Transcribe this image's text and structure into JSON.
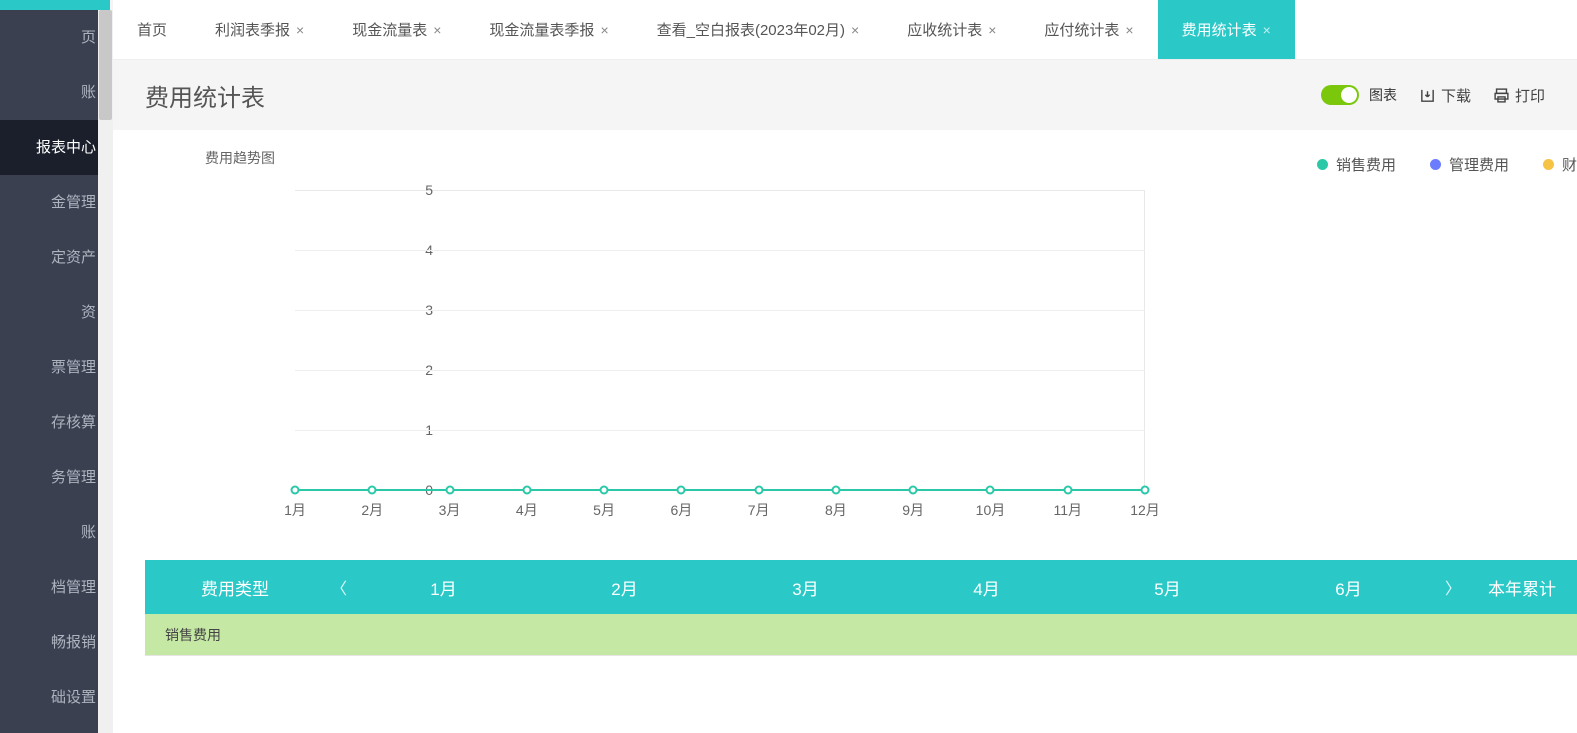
{
  "sidebar": {
    "items": [
      {
        "label": "页"
      },
      {
        "label": "账"
      },
      {
        "label": "报表中心",
        "active": true
      },
      {
        "label": "金管理"
      },
      {
        "label": "定资产"
      },
      {
        "label": "资"
      },
      {
        "label": "票管理"
      },
      {
        "label": "存核算"
      },
      {
        "label": "务管理"
      },
      {
        "label": "账"
      },
      {
        "label": "档管理"
      },
      {
        "label": "畅报销"
      },
      {
        "label": "础设置"
      }
    ],
    "bg_color": "#3a4050",
    "active_bg": "#1a1f2b",
    "text_color": "#adb3bf"
  },
  "tabs": [
    {
      "label": "首页",
      "closable": false
    },
    {
      "label": "利润表季报",
      "closable": true
    },
    {
      "label": "现金流量表",
      "closable": true
    },
    {
      "label": "现金流量表季报",
      "closable": true
    },
    {
      "label": "查看_空白报表(2023年02月)",
      "closable": true
    },
    {
      "label": "应收统计表",
      "closable": true
    },
    {
      "label": "应付统计表",
      "closable": true
    },
    {
      "label": "费用统计表",
      "closable": true,
      "active": true
    }
  ],
  "page": {
    "title": "费用统计表",
    "toggle_label": "图表",
    "toggle_on": true,
    "download_label": "下载",
    "print_label": "打印"
  },
  "chart": {
    "title": "费用趋势图",
    "type": "line",
    "legend": [
      {
        "label": "销售费用",
        "color": "#2bc8a8"
      },
      {
        "label": "管理费用",
        "color": "#6b7cff"
      },
      {
        "label": "财",
        "color": "#f6c344"
      }
    ],
    "x_labels": [
      "1月",
      "2月",
      "3月",
      "4月",
      "5月",
      "6月",
      "7月",
      "8月",
      "9月",
      "10月",
      "11月",
      "12月"
    ],
    "y_ticks": [
      0,
      1,
      2,
      3,
      4,
      5
    ],
    "ylim": [
      0,
      5
    ],
    "series": [
      {
        "name": "销售费用",
        "color": "#2bc8a8",
        "values": [
          0,
          0,
          0,
          0,
          0,
          0,
          0,
          0,
          0,
          0,
          0,
          0
        ]
      }
    ],
    "grid_color": "#eeeeee",
    "axis_color": "#e8e8e8",
    "background_color": "#ffffff",
    "label_fontsize": 14,
    "line_width": 2,
    "marker_size": 9
  },
  "table": {
    "header_bg": "#2bc8c8",
    "header_color": "#ffffff",
    "row_bg": "#c6e8a5",
    "type_header": "费用类型",
    "month_headers": [
      "1月",
      "2月",
      "3月",
      "4月",
      "5月",
      "6月"
    ],
    "total_header": "本年累计",
    "nav_prev": "〈",
    "nav_next": "〉",
    "rows": [
      {
        "type": "销售费用",
        "cells": [
          "",
          "",
          "",
          "",
          "",
          ""
        ],
        "total": ""
      }
    ]
  },
  "colors": {
    "teal": "#2bc8c8",
    "green_toggle": "#7ac70c"
  }
}
